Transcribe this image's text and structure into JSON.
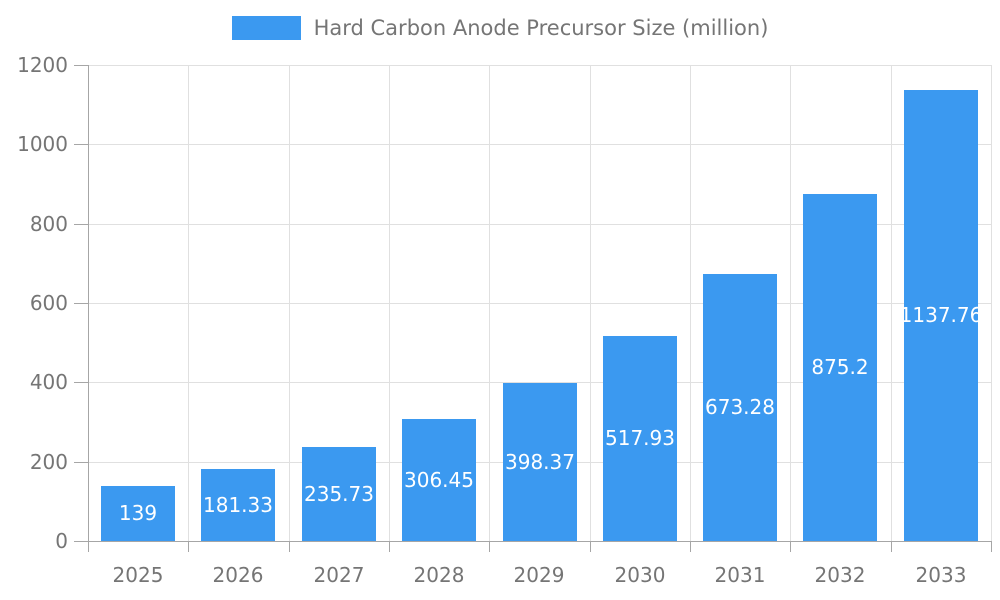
{
  "chart_data": {
    "type": "bar",
    "title": "Hard Carbon Anode Precursor Size (million)",
    "legend": {
      "position": "top-center",
      "entries": [
        "Hard Carbon Anode Precursor Size (million)"
      ]
    },
    "categories": [
      "2025",
      "2026",
      "2027",
      "2028",
      "2029",
      "2030",
      "2031",
      "2032",
      "2033"
    ],
    "values": [
      139,
      181.33,
      235.73,
      306.45,
      398.37,
      517.93,
      673.28,
      875.2,
      1137.76
    ],
    "value_labels": [
      "139",
      "181.33",
      "235.73",
      "306.45",
      "398.37",
      "517.93",
      "673.28",
      "875.2",
      "1137.76"
    ],
    "xlabel": "",
    "ylabel": "",
    "ylim": [
      0,
      1200
    ],
    "ytick_step": 200,
    "ytick_labels": [
      "0",
      "200",
      "400",
      "600",
      "800",
      "1000",
      "1200"
    ],
    "grid": true,
    "colors": {
      "bar": "#3B99F0",
      "bar_label_text": "#FFFFFF",
      "axis_text": "#757575",
      "gridline": "#E0E0E0",
      "axis_line": "#A6A6A6",
      "background": "#FFFFFF"
    }
  }
}
